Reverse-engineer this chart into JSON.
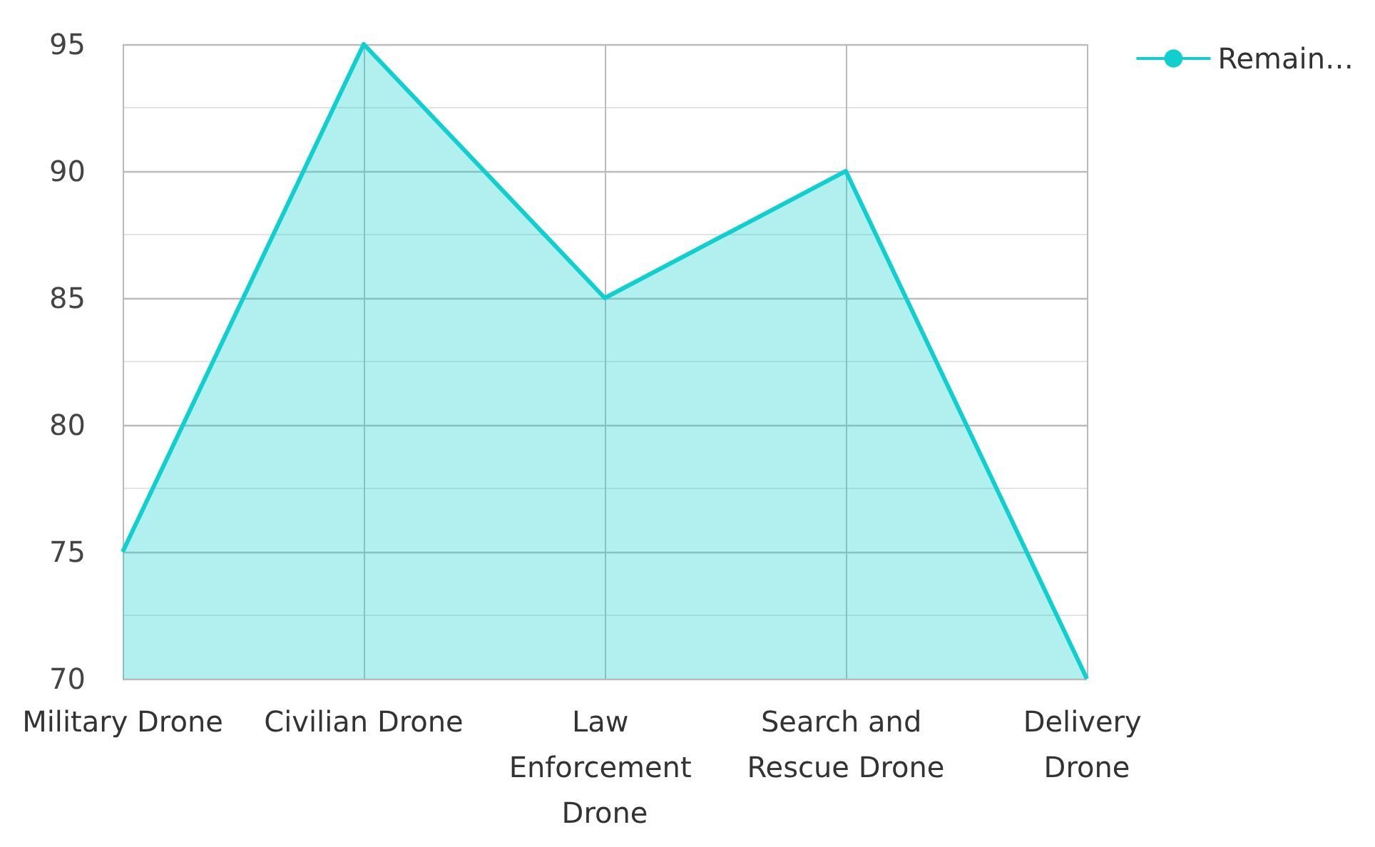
{
  "chart_data": {
    "type": "area",
    "categories": [
      "Military Drone",
      "Civilian Drone",
      "Law Enforcement Drone",
      "Search and Rescue Drone",
      "Delivery Drone"
    ],
    "series": [
      {
        "name": "Remain…",
        "color": "#0fcfcf",
        "values": [
          75,
          95,
          85,
          90,
          70
        ]
      }
    ],
    "ylim": [
      70,
      95
    ],
    "yticks": [
      70,
      75,
      80,
      85,
      90,
      95
    ],
    "grid": true,
    "legend": "top right",
    "marker": "none"
  }
}
